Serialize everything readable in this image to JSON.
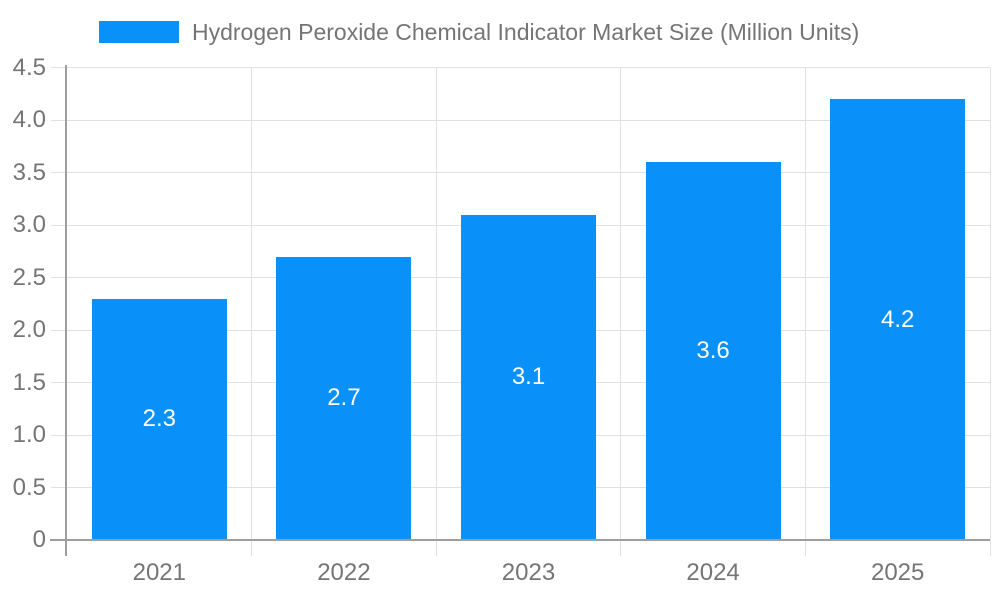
{
  "legend": {
    "title": "Hydrogen Peroxide Chemical Indicator Market Size (Million Units)"
  },
  "chart_data": {
    "type": "bar",
    "title": "Hydrogen Peroxide Chemical Indicator Market Size (Million Units)",
    "categories": [
      "2021",
      "2022",
      "2023",
      "2024",
      "2025"
    ],
    "values": [
      2.3,
      2.7,
      3.1,
      3.6,
      4.2
    ],
    "value_labels": [
      "2.3",
      "2.7",
      "3.1",
      "3.6",
      "4.2"
    ],
    "xlabel": "",
    "ylabel": "",
    "ylim": [
      0,
      4.5
    ],
    "ytick_step": 0.5,
    "ytick_labels": [
      "0",
      "0.5",
      "1.0",
      "1.5",
      "2.0",
      "2.5",
      "3.0",
      "3.5",
      "4.0",
      "4.5"
    ],
    "grid": true,
    "legend_position": "top-left",
    "colors": {
      "bar": "#0991f9",
      "grid": "#e0e0e0",
      "axis": "#9e9e9e",
      "text": "#757575",
      "bar_label": "#ffffff",
      "background": "#ffffff"
    }
  }
}
